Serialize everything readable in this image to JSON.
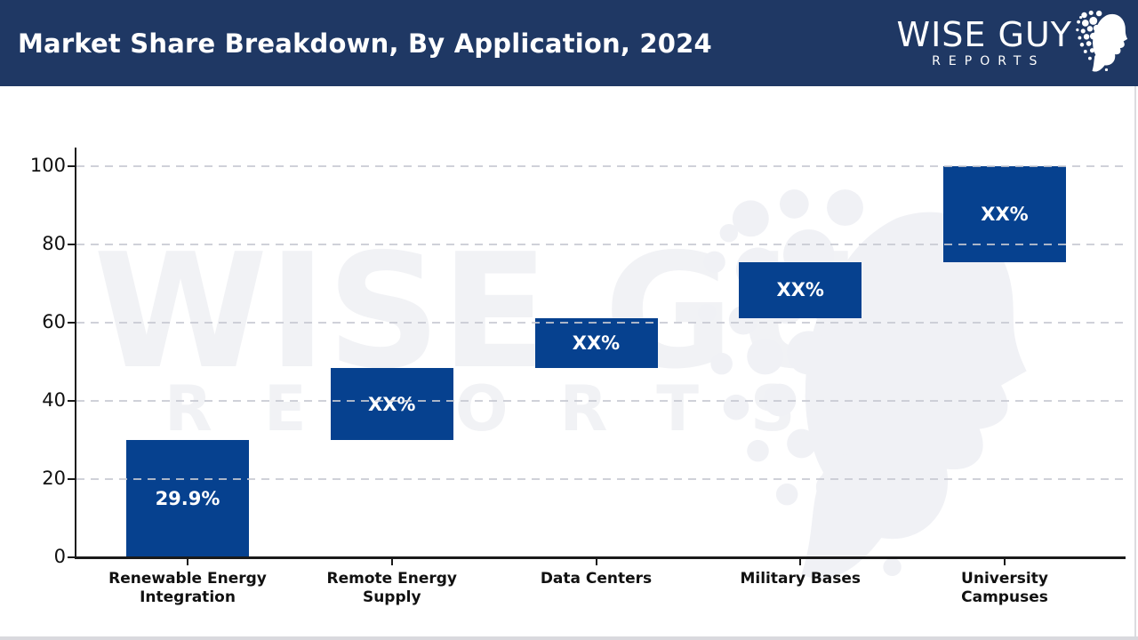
{
  "header": {
    "title": "Market Share Breakdown, By Application, 2024",
    "logo": {
      "name": "WISE GUY",
      "tagline": "REPORTS"
    }
  },
  "watermark": {
    "name": "WISE GUY",
    "tagline": "REPORTS"
  },
  "chart_data": {
    "type": "bar",
    "subtype": "waterfall-floating-bars",
    "title": "Market Share Breakdown, By Application, 2024",
    "categories": [
      "Renewable Energy Integration",
      "Remote Energy Supply",
      "Data Centers",
      "Military Bases",
      "University Campuses"
    ],
    "series": [
      {
        "name": "Market Share (%)",
        "segments": [
          {
            "category": "Renewable Energy Integration",
            "start": 0,
            "end": 29.9,
            "label": "29.9%"
          },
          {
            "category": "Remote Energy Supply",
            "start": 29.9,
            "end": 48.3,
            "label": "XX%"
          },
          {
            "category": "Data Centers",
            "start": 48.3,
            "end": 61.2,
            "label": "XX%"
          },
          {
            "category": "Military Bases",
            "start": 61.2,
            "end": 75.5,
            "label": "XX%"
          },
          {
            "category": "University Campuses",
            "start": 75.5,
            "end": 100,
            "label": "XX%"
          }
        ]
      }
    ],
    "xlabel": "",
    "ylabel": "",
    "ylim": [
      0,
      100
    ],
    "yticks": [
      0,
      20,
      40,
      60,
      80,
      100
    ],
    "grid": "horizontal-dashed",
    "legend": "none",
    "bar_color": "#06418f",
    "bar_label_color": "#ffffff"
  },
  "colors": {
    "header_bg": "#1f3864",
    "bar": "#06418f",
    "axis": "#1a1a1a",
    "grid": "#d2d4db",
    "watermark": "#f1f2f5",
    "footer_strip": "#d9d9de"
  }
}
